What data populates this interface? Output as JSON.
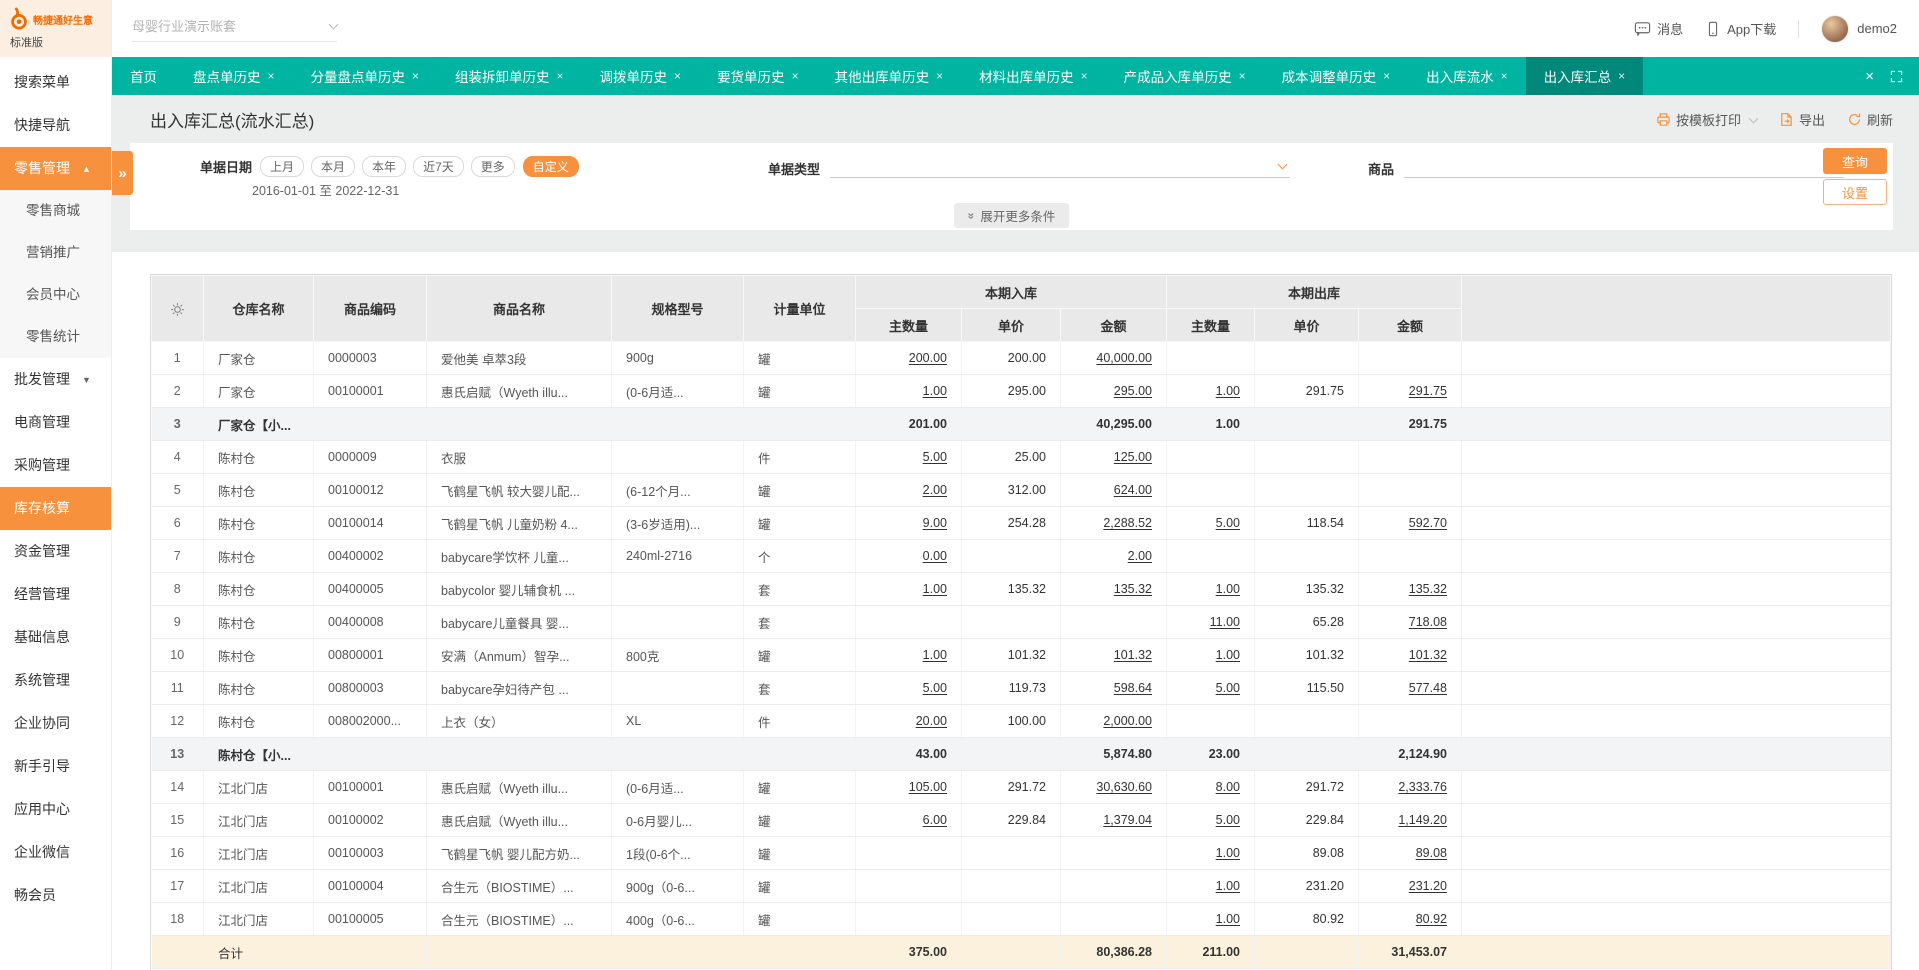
{
  "brand": {
    "logo_text": "畅捷通好生意",
    "edition": "标准版"
  },
  "topbar": {
    "account": "母婴行业演示账套",
    "messages": "消息",
    "app_download": "App下载",
    "username": "demo2"
  },
  "icons": [
    "rabbit-logo-icon",
    "chevron-down-icon",
    "message-icon",
    "phone-icon",
    "close-icon",
    "fullscreen-icon",
    "printer-icon",
    "export-icon",
    "refresh-icon",
    "gear-icon",
    "double-chevron-icon",
    "ellipsis-icon"
  ],
  "sidebar": {
    "items": [
      {
        "label": "搜索菜单",
        "type": "top"
      },
      {
        "label": "快捷导航",
        "type": "top"
      },
      {
        "label": "零售管理",
        "type": "top",
        "active": true,
        "arrow": "up"
      },
      {
        "label": "零售商城",
        "type": "sub"
      },
      {
        "label": "营销推广",
        "type": "sub"
      },
      {
        "label": "会员中心",
        "type": "sub"
      },
      {
        "label": "零售统计",
        "type": "sub"
      },
      {
        "label": "批发管理",
        "type": "top",
        "arrow": "down"
      },
      {
        "label": "电商管理",
        "type": "top"
      },
      {
        "label": "采购管理",
        "type": "top"
      },
      {
        "label": "库存核算",
        "type": "top",
        "active": true
      },
      {
        "label": "资金管理",
        "type": "top"
      },
      {
        "label": "经营管理",
        "type": "top"
      },
      {
        "label": "基础信息",
        "type": "top"
      },
      {
        "label": "系统管理",
        "type": "top"
      },
      {
        "label": "企业协同",
        "type": "top"
      },
      {
        "label": "新手引导",
        "type": "top"
      },
      {
        "label": "应用中心",
        "type": "top"
      },
      {
        "label": "企业微信",
        "type": "top"
      },
      {
        "label": "畅会员",
        "type": "top"
      }
    ]
  },
  "tabs": {
    "items": [
      {
        "label": "首页",
        "closable": false
      },
      {
        "label": "盘点单历史",
        "closable": true
      },
      {
        "label": "分量盘点单历史",
        "closable": true
      },
      {
        "label": "组装拆卸单历史",
        "closable": true
      },
      {
        "label": "调拨单历史",
        "closable": true
      },
      {
        "label": "要货单历史",
        "closable": true
      },
      {
        "label": "其他出库单历史",
        "closable": true
      },
      {
        "label": "材料出库单历史",
        "closable": true
      },
      {
        "label": "产成品入库单历史",
        "closable": true
      },
      {
        "label": "成本调整单历史",
        "closable": true
      },
      {
        "label": "出入库流水",
        "closable": true
      },
      {
        "label": "出入库汇总",
        "closable": true,
        "active": true
      }
    ]
  },
  "page": {
    "title": "出入库汇总(流水汇总)",
    "actions": {
      "print": "按模板打印",
      "export": "导出",
      "refresh": "刷新"
    }
  },
  "filters": {
    "date_label": "单据日期",
    "date_presets": [
      "上月",
      "本月",
      "本年",
      "近7天",
      "更多"
    ],
    "custom_label": "自定义",
    "date_range": "2016-01-01 至 2022-12-31",
    "doc_type_label": "单据类型",
    "product_label": "商品",
    "ellipsis": "...",
    "search_label": "查询",
    "settings_label": "设置",
    "expand_more_label": "展开更多条件"
  },
  "table": {
    "headers": {
      "warehouse": "仓库名称",
      "code": "商品编码",
      "name": "商品名称",
      "spec": "规格型号",
      "unit": "计量单位",
      "inbound_group": "本期入库",
      "outbound_group": "本期出库",
      "qty": "主数量",
      "price": "单价",
      "amount": "金额"
    },
    "rows": [
      {
        "idx": "1",
        "wh": "厂家仓",
        "code": "0000003",
        "name": "爱他美 卓萃3段",
        "spec": "900g",
        "unit": "罐",
        "iq": "200.00",
        "ip": "200.00",
        "ia": "40,000.00",
        "oq": "",
        "op": "",
        "oa": "",
        "type": "item"
      },
      {
        "idx": "2",
        "wh": "厂家仓",
        "code": "00100001",
        "name": "惠氏启赋（Wyeth illu...",
        "spec": "(0-6月适...",
        "unit": "罐",
        "iq": "1.00",
        "ip": "295.00",
        "ia": "295.00",
        "oq": "1.00",
        "op": "291.75",
        "oa": "291.75",
        "type": "item"
      },
      {
        "idx": "3",
        "wh": "厂家仓【小...",
        "code": "",
        "name": "",
        "spec": "",
        "unit": "",
        "iq": "201.00",
        "ip": "",
        "ia": "40,295.00",
        "oq": "1.00",
        "op": "",
        "oa": "291.75",
        "type": "subtotal"
      },
      {
        "idx": "4",
        "wh": "陈村仓",
        "code": "0000009",
        "name": "衣服",
        "spec": "",
        "unit": "件",
        "iq": "5.00",
        "ip": "25.00",
        "ia": "125.00",
        "oq": "",
        "op": "",
        "oa": "",
        "type": "item"
      },
      {
        "idx": "5",
        "wh": "陈村仓",
        "code": "00100012",
        "name": "飞鹤星飞帆 较大婴儿配...",
        "spec": "(6-12个月...",
        "unit": "罐",
        "iq": "2.00",
        "ip": "312.00",
        "ia": "624.00",
        "oq": "",
        "op": "",
        "oa": "",
        "type": "item"
      },
      {
        "idx": "6",
        "wh": "陈村仓",
        "code": "00100014",
        "name": "飞鹤星飞帆 儿童奶粉 4...",
        "spec": "(3-6岁适用)...",
        "unit": "罐",
        "iq": "9.00",
        "ip": "254.28",
        "ia": "2,288.52",
        "oq": "5.00",
        "op": "118.54",
        "oa": "592.70",
        "type": "item"
      },
      {
        "idx": "7",
        "wh": "陈村仓",
        "code": "00400002",
        "name": "babycare学饮杯 儿童...",
        "spec": "240ml-2716",
        "unit": "个",
        "iq": "0.00",
        "ip": "",
        "ia": "2.00",
        "oq": "",
        "op": "",
        "oa": "",
        "type": "item"
      },
      {
        "idx": "8",
        "wh": "陈村仓",
        "code": "00400005",
        "name": "babycolor 婴儿辅食机 ...",
        "spec": "",
        "unit": "套",
        "iq": "1.00",
        "ip": "135.32",
        "ia": "135.32",
        "oq": "1.00",
        "op": "135.32",
        "oa": "135.32",
        "type": "item"
      },
      {
        "idx": "9",
        "wh": "陈村仓",
        "code": "00400008",
        "name": "babycare儿童餐具 婴...",
        "spec": "",
        "unit": "套",
        "iq": "",
        "ip": "",
        "ia": "",
        "oq": "11.00",
        "op": "65.28",
        "oa": "718.08",
        "type": "item"
      },
      {
        "idx": "10",
        "wh": "陈村仓",
        "code": "00800001",
        "name": "安满（Anmum）智孕...",
        "spec": "800克",
        "unit": "罐",
        "iq": "1.00",
        "ip": "101.32",
        "ia": "101.32",
        "oq": "1.00",
        "op": "101.32",
        "oa": "101.32",
        "type": "item"
      },
      {
        "idx": "11",
        "wh": "陈村仓",
        "code": "00800003",
        "name": "babycare孕妇待产包 ...",
        "spec": "",
        "unit": "套",
        "iq": "5.00",
        "ip": "119.73",
        "ia": "598.64",
        "oq": "5.00",
        "op": "115.50",
        "oa": "577.48",
        "type": "item"
      },
      {
        "idx": "12",
        "wh": "陈村仓",
        "code": "008002000...",
        "name": "上衣（女）",
        "spec": "XL",
        "unit": "件",
        "iq": "20.00",
        "ip": "100.00",
        "ia": "2,000.00",
        "oq": "",
        "op": "",
        "oa": "",
        "type": "item"
      },
      {
        "idx": "13",
        "wh": "陈村仓【小...",
        "code": "",
        "name": "",
        "spec": "",
        "unit": "",
        "iq": "43.00",
        "ip": "",
        "ia": "5,874.80",
        "oq": "23.00",
        "op": "",
        "oa": "2,124.90",
        "type": "subtotal"
      },
      {
        "idx": "14",
        "wh": "江北门店",
        "code": "00100001",
        "name": "惠氏启赋（Wyeth illu...",
        "spec": "(0-6月适...",
        "unit": "罐",
        "iq": "105.00",
        "ip": "291.72",
        "ia": "30,630.60",
        "oq": "8.00",
        "op": "291.72",
        "oa": "2,333.76",
        "type": "item"
      },
      {
        "idx": "15",
        "wh": "江北门店",
        "code": "00100002",
        "name": "惠氏启赋（Wyeth illu...",
        "spec": "0-6月婴儿...",
        "unit": "罐",
        "iq": "6.00",
        "ip": "229.84",
        "ia": "1,379.04",
        "oq": "5.00",
        "op": "229.84",
        "oa": "1,149.20",
        "type": "item"
      },
      {
        "idx": "16",
        "wh": "江北门店",
        "code": "00100003",
        "name": "飞鹤星飞帆 婴儿配方奶...",
        "spec": "1段(0-6个...",
        "unit": "罐",
        "iq": "",
        "ip": "",
        "ia": "",
        "oq": "1.00",
        "op": "89.08",
        "oa": "89.08",
        "type": "item"
      },
      {
        "idx": "17",
        "wh": "江北门店",
        "code": "00100004",
        "name": "合生元（BIOSTIME）...",
        "spec": "900g（0-6...",
        "unit": "罐",
        "iq": "",
        "ip": "",
        "ia": "",
        "oq": "1.00",
        "op": "231.20",
        "oa": "231.20",
        "type": "item"
      },
      {
        "idx": "18",
        "wh": "江北门店",
        "code": "00100005",
        "name": "合生元（BIOSTIME）...",
        "spec": "400g（0-6...",
        "unit": "罐",
        "iq": "",
        "ip": "",
        "ia": "",
        "oq": "1.00",
        "op": "80.92",
        "oa": "80.92",
        "type": "item"
      },
      {
        "idx": "",
        "wh": "合计",
        "code": "",
        "name": "",
        "spec": "",
        "unit": "",
        "iq": "375.00",
        "ip": "",
        "ia": "80,386.28",
        "oq": "211.00",
        "op": "",
        "oa": "31,453.07",
        "type": "total"
      }
    ]
  }
}
